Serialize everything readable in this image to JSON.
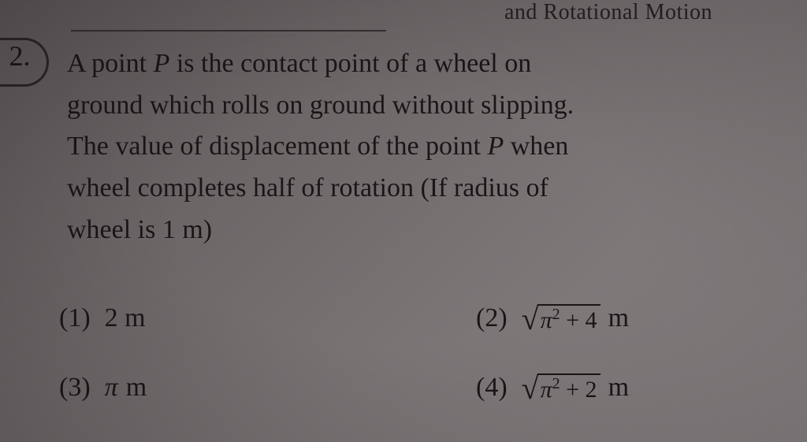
{
  "header": {
    "partial_title": "and Rotational Motion"
  },
  "question": {
    "number": "2.",
    "line1_part1": "A point ",
    "line1_var": "P",
    "line1_part2": " is the contact point of a wheel on",
    "line2": "ground which rolls on ground without slipping.",
    "line3_part1": "The value of displacement of the point ",
    "line3_var": "P",
    "line3_part2": " when",
    "line4": "wheel completes half of rotation (If radius of",
    "line5": "wheel is 1 m)"
  },
  "options": {
    "opt1": {
      "label": "(1)",
      "text": "2 m"
    },
    "opt2": {
      "label": "(2)",
      "sqrt_inner": "π² + 4",
      "unit": "m"
    },
    "opt3": {
      "label": "(3)",
      "pi_text": "π",
      "unit": "m"
    },
    "opt4": {
      "label": "(4)",
      "sqrt_inner": "π² + 2",
      "unit": "m"
    }
  },
  "style": {
    "text_color": "#1a1618",
    "bg_gradient_start": "#5a5556",
    "bg_gradient_end": "#8a8485",
    "font_size_question": 34,
    "font_size_header": 28
  }
}
